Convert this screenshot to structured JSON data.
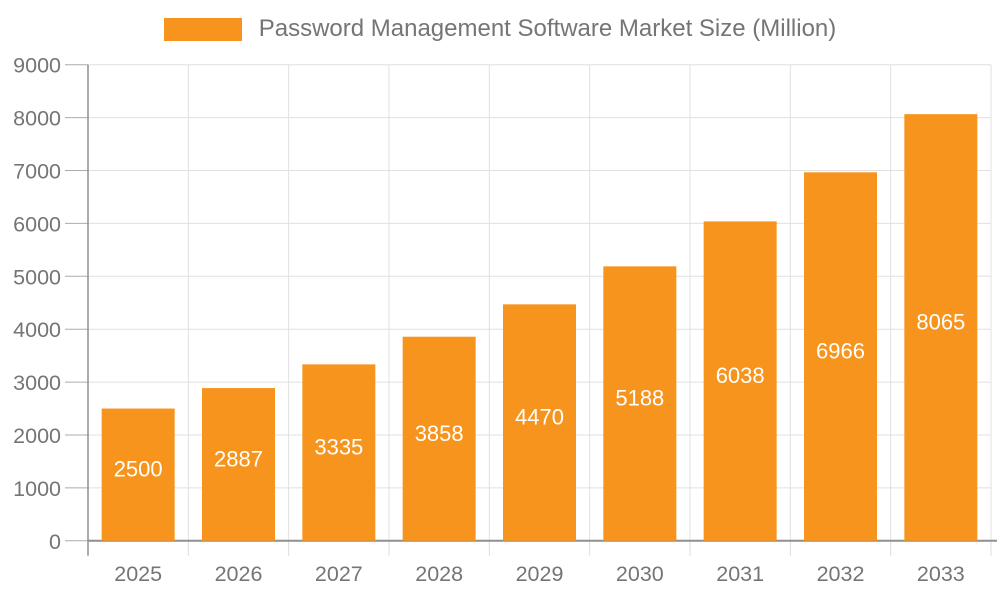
{
  "chart_data": {
    "type": "bar",
    "title": "Password Management Software Market Size (Million)",
    "categories": [
      "2025",
      "2026",
      "2027",
      "2028",
      "2029",
      "2030",
      "2031",
      "2032",
      "2033"
    ],
    "values": [
      2500,
      2887,
      3335,
      3858,
      4470,
      5188,
      6038,
      6966,
      8065
    ],
    "xlabel": "",
    "ylabel": "",
    "ylim": [
      0,
      9000
    ],
    "y_ticks": [
      0,
      1000,
      2000,
      3000,
      4000,
      5000,
      6000,
      7000,
      8000,
      9000
    ],
    "grid": true,
    "legend_position": "top",
    "value_label_position": "inside-center",
    "colors": {
      "bar": "#F7941E",
      "grid": "#E0E0E0",
      "axis": "#8F8F8F",
      "y_tick": "#ABABAB",
      "x_tick": "#DCDCDC",
      "axis_label": "#757575",
      "value_label": "#FFFFFF",
      "legend_text": "#757575"
    }
  }
}
